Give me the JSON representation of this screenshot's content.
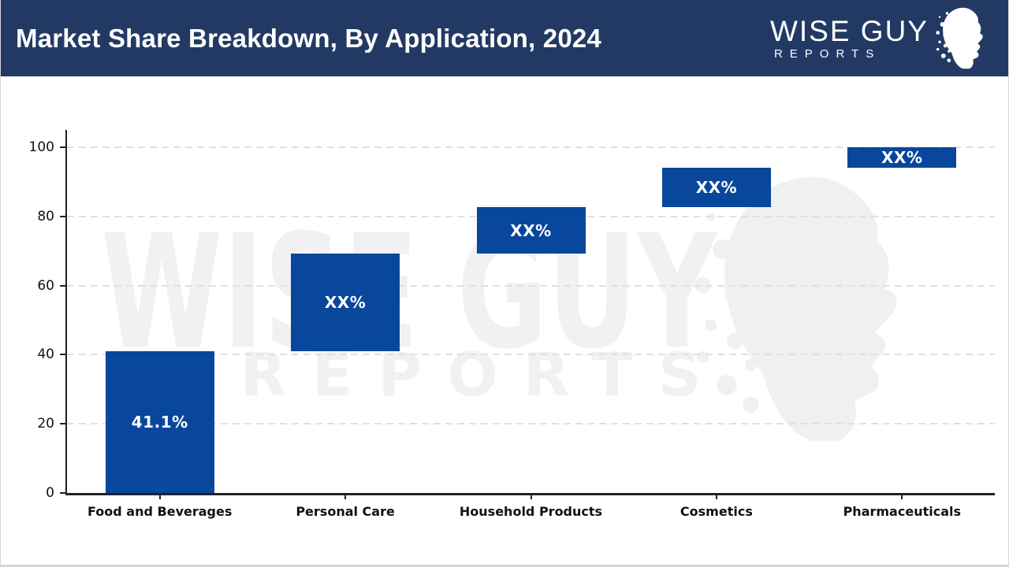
{
  "header": {
    "title": "Market Share Breakdown, By Application, 2024",
    "logo": {
      "line1": "WISE GUY",
      "line2": "REPORTS"
    }
  },
  "watermark": {
    "line1": "WISE GUY",
    "line2": "REPORTS"
  },
  "colors": {
    "header_bg": "#223a63",
    "bar": "#08479c",
    "bar_label_text": "#ffffff",
    "grid": "#e0e0e0",
    "axis": "#222222",
    "watermark": "#f0f0f2"
  },
  "chart_data": {
    "type": "bar",
    "subtype": "waterfall",
    "title": "Market Share Breakdown, By Application, 2024",
    "categories": [
      "Food and Beverages",
      "Personal Care",
      "Household Products",
      "Cosmetics",
      "Pharmaceuticals"
    ],
    "segments": [
      {
        "category": "Food and Beverages",
        "start": 0,
        "end": 41.1,
        "label": "41.1%"
      },
      {
        "category": "Personal Care",
        "start": 41.1,
        "end": 69.2,
        "label": "XX%"
      },
      {
        "category": "Household Products",
        "start": 69.2,
        "end": 82.7,
        "label": "XX%"
      },
      {
        "category": "Cosmetics",
        "start": 82.7,
        "end": 94.1,
        "label": "XX%"
      },
      {
        "category": "Pharmaceuticals",
        "start": 94.1,
        "end": 100,
        "label": "XX%"
      }
    ],
    "values_masked_as": "XX%",
    "yticks": [
      0,
      20,
      40,
      60,
      80,
      100
    ],
    "ylim": [
      0,
      105
    ],
    "xlabel": "",
    "ylabel": "",
    "grid": "dashed-horizontal",
    "legend": null
  }
}
